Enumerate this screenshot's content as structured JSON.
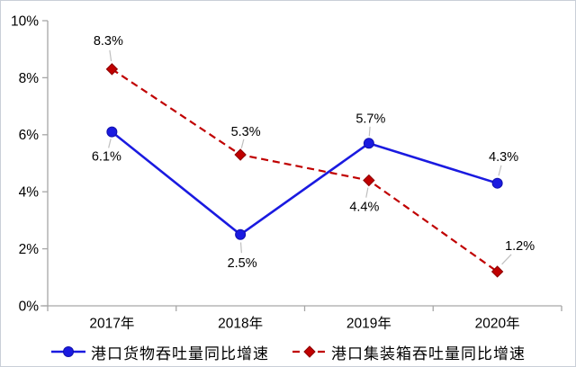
{
  "frame": {
    "background": "#ffffff",
    "border_color": "#c9cfd8"
  },
  "chart_data": {
    "type": "line",
    "categories": [
      "2017年",
      "2018年",
      "2019年",
      "2020年"
    ],
    "series": [
      {
        "name": "港口货物吞吐量同比增速",
        "values": [
          6.1,
          2.5,
          5.7,
          4.3
        ],
        "data_labels": [
          "6.1%",
          "2.5%",
          "5.7%",
          "4.3%"
        ],
        "color": "#1a1ae0",
        "marker_edge": "#1111ad",
        "marker": "circle",
        "line_style": "solid"
      },
      {
        "name": "港口集装箱吞吐量同比增速",
        "values": [
          8.3,
          5.3,
          4.4,
          1.2
        ],
        "data_labels": [
          "8.3%",
          "5.3%",
          "4.4%",
          "1.2%"
        ],
        "color": "#c00000",
        "marker_edge": "#8d0000",
        "marker": "diamond",
        "line_style": "dashed"
      }
    ],
    "ylim": [
      0,
      10
    ],
    "ytick_step": 2,
    "ytick_labels": [
      "0%",
      "2%",
      "4%",
      "6%",
      "8%",
      "10%"
    ],
    "xlabel": "",
    "ylabel": "",
    "title": "",
    "grid": false,
    "legend_position": "bottom",
    "axis_color": "#a6a6a6",
    "text_color": "#000000",
    "leader_color": "#bfbfbf",
    "label_offsets": [
      [
        [
          -6,
          27
        ],
        [
          2,
          31
        ],
        [
          2,
          -28
        ],
        [
          7,
          -30
        ]
      ],
      [
        [
          -4,
          -32
        ],
        [
          6,
          -26
        ],
        [
          -5,
          29
        ],
        [
          25,
          -29
        ]
      ]
    ]
  }
}
